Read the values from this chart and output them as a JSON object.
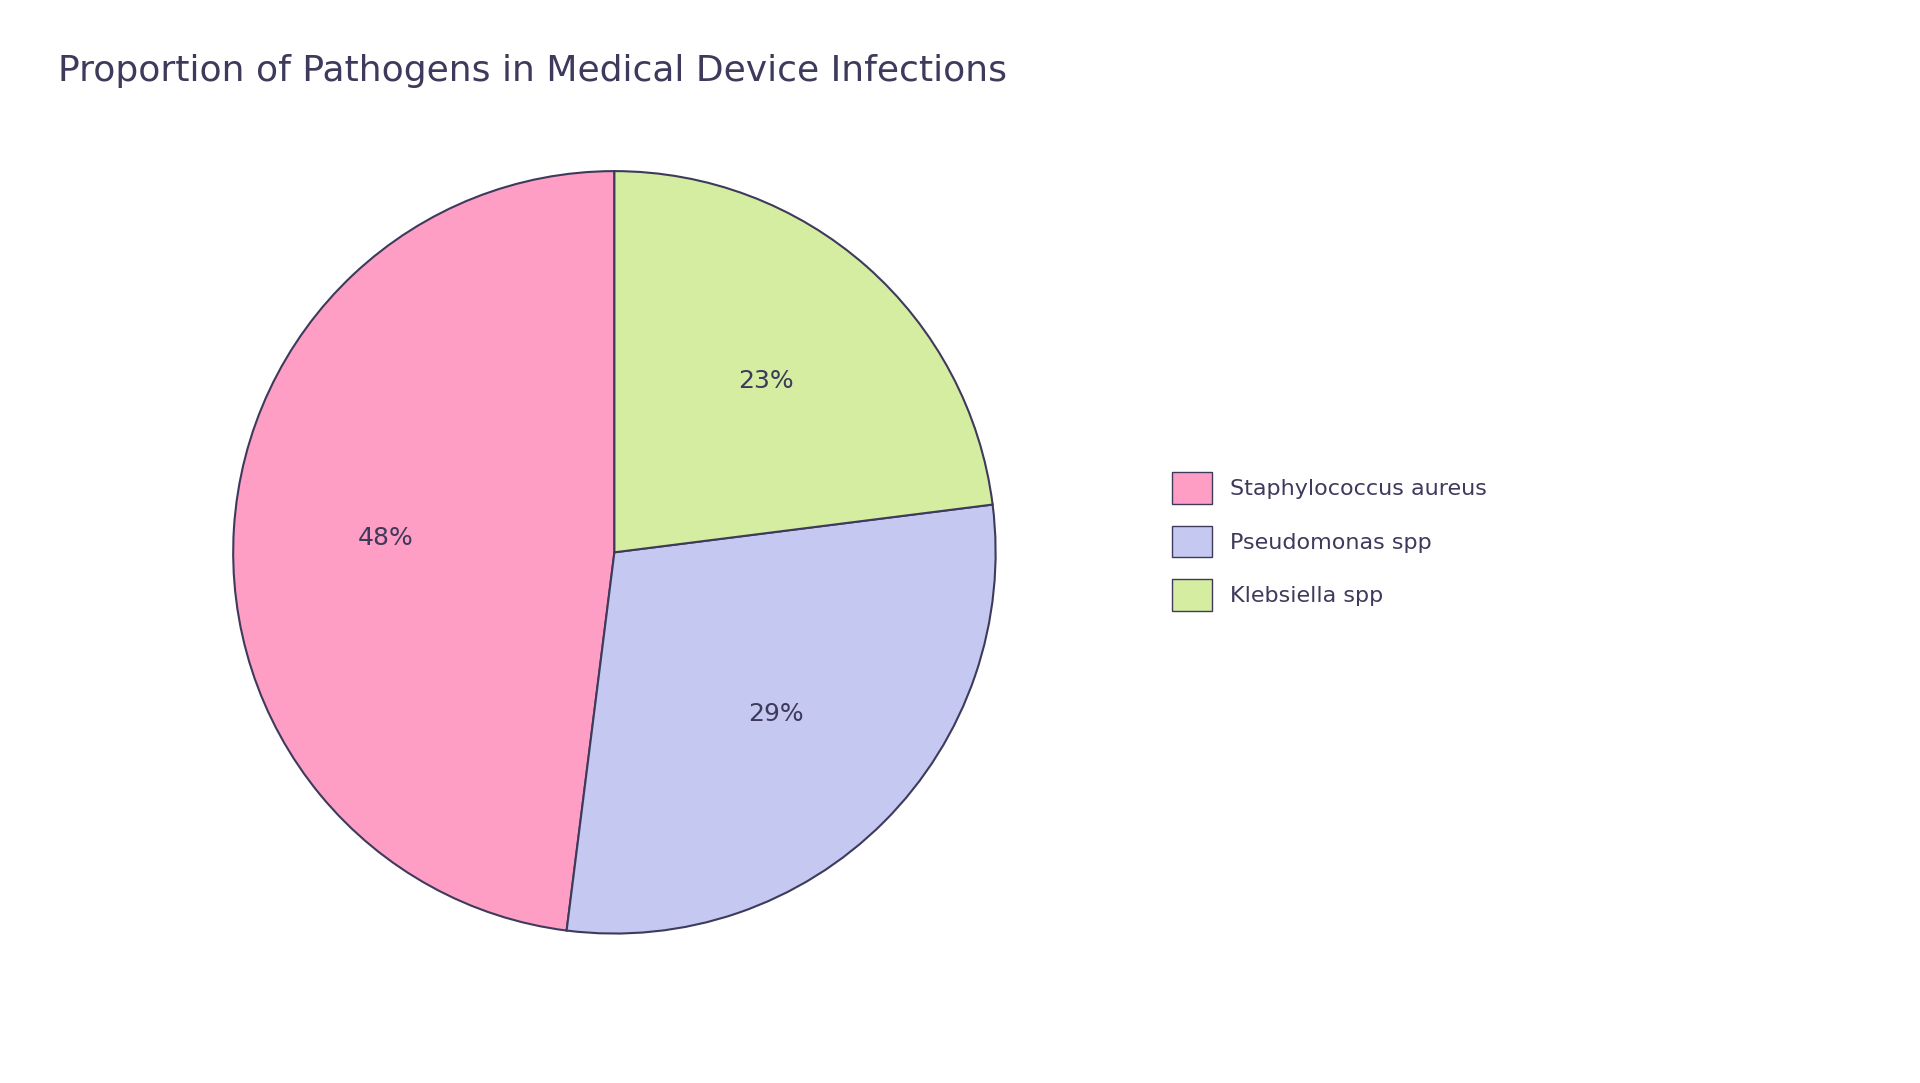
{
  "title": "Proportion of Pathogens in Medical Device Infections",
  "labels": [
    "Staphylococcus aureus",
    "Pseudomonas spp",
    "Klebsiella spp"
  ],
  "values": [
    48,
    29,
    23
  ],
  "colors": [
    "#FF9EC4",
    "#C5C8F0",
    "#D4EDA0"
  ],
  "edge_color": "#3d3a5c",
  "edge_width": 1.5,
  "autopct_fontsize": 18,
  "legend_fontsize": 16,
  "title_fontsize": 26,
  "background_color": "#ffffff",
  "startangle": 90,
  "text_color": "#3d3a5c",
  "pct_distance": 0.6
}
